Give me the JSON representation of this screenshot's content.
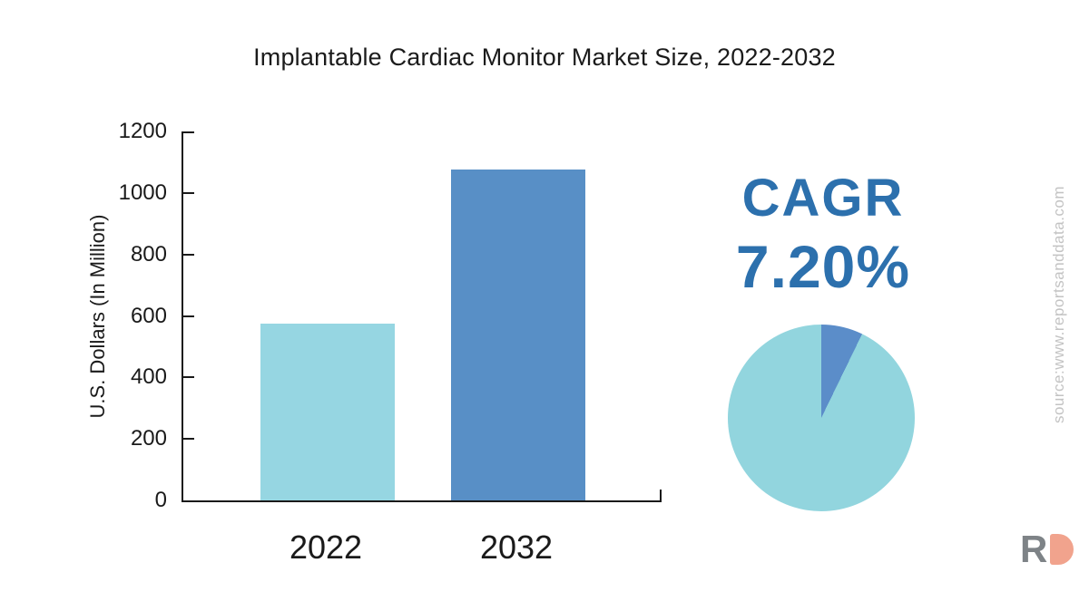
{
  "chart_data": [
    {
      "type": "bar",
      "title": "Implantable Cardiac Monitor Market Size, 2022-2032",
      "categories": [
        "2022",
        "2032"
      ],
      "values": [
        575,
        1075
      ],
      "xlabel": "",
      "ylabel": "U.S. Dollars (In Million)",
      "ylim": [
        0,
        1200
      ],
      "yticks": [
        0,
        200,
        400,
        600,
        800,
        1000,
        1200
      ],
      "bar_colors": [
        "#96D6E2",
        "#588FC6"
      ],
      "axis_color": "#1a1a1a",
      "grid": false,
      "legend": "none"
    },
    {
      "type": "pie",
      "values": [
        7.2,
        92.8
      ],
      "colors": [
        "#5B8DC9",
        "#92D5DE"
      ],
      "start_angle_deg": 0,
      "direction": "clockwise",
      "legend": "none"
    }
  ],
  "cagr": {
    "label": "CAGR",
    "value": "7.20%",
    "color": "#2C70AD"
  },
  "source_note": "source:www.reportsanddata.com",
  "logo": {
    "r_letter": "R",
    "r_color": "#7E8387",
    "d_color": "#F1A38D"
  }
}
